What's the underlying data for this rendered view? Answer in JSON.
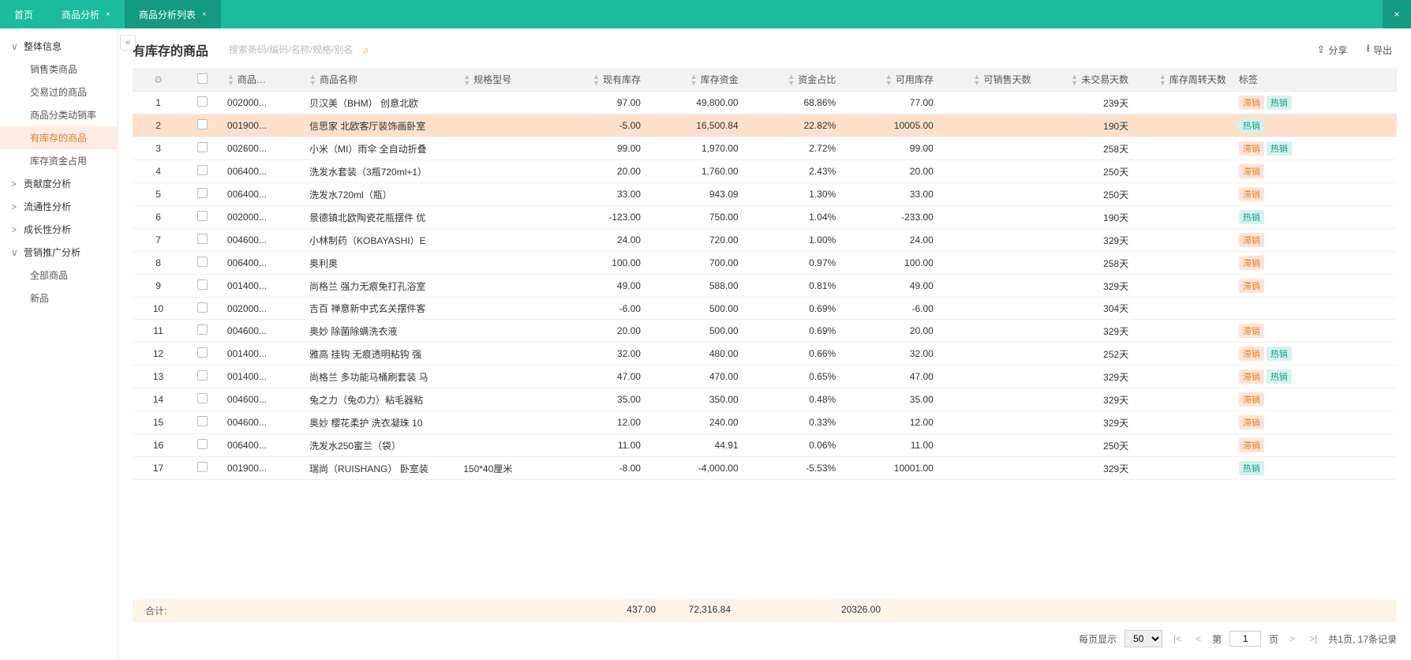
{
  "tabs": {
    "items": [
      {
        "label": "首页",
        "closable": false,
        "active": false
      },
      {
        "label": "商品分析",
        "closable": true,
        "active": false
      },
      {
        "label": "商品分析列表",
        "closable": true,
        "active": true
      }
    ],
    "close_glyph": "×"
  },
  "sidebar": {
    "collapse_glyph": "«",
    "groups": [
      {
        "title": "整体信息",
        "open": true,
        "items": [
          {
            "label": "销售类商品",
            "active": false
          },
          {
            "label": "交易过的商品",
            "active": false
          },
          {
            "label": "商品分类动销率",
            "active": false
          },
          {
            "label": "有库存的商品",
            "active": true
          },
          {
            "label": "库存资金占用",
            "active": false
          }
        ]
      },
      {
        "title": "贡献度分析",
        "open": false,
        "items": []
      },
      {
        "title": "流通性分析",
        "open": false,
        "items": []
      },
      {
        "title": "成长性分析",
        "open": false,
        "items": []
      },
      {
        "title": "营销推广分析",
        "open": true,
        "items": [
          {
            "label": "全部商品",
            "active": false
          },
          {
            "label": "新品",
            "active": false
          }
        ]
      }
    ]
  },
  "toolbar": {
    "title": "有库存的商品",
    "search_placeholder": "搜索条码/编码/名称/规格/别名",
    "share_label": "分享",
    "export_label": "导出"
  },
  "columns": [
    {
      "key": "idx",
      "label": "",
      "type": "gear"
    },
    {
      "key": "chk",
      "label": "",
      "type": "chk"
    },
    {
      "key": "code",
      "label": "商品…",
      "sortable": true
    },
    {
      "key": "name",
      "label": "商品名称",
      "sortable": true
    },
    {
      "key": "spec",
      "label": "规格型号",
      "sortable": true
    },
    {
      "key": "stock",
      "label": "现有库存",
      "sortable": true,
      "num": true
    },
    {
      "key": "fund",
      "label": "库存资金",
      "sortable": true,
      "num": true
    },
    {
      "key": "fund_pct",
      "label": "资金占比",
      "sortable": true,
      "num": true
    },
    {
      "key": "avail",
      "label": "可用库存",
      "sortable": true,
      "num": true
    },
    {
      "key": "sale_days",
      "label": "可销售天数",
      "sortable": true,
      "num": true
    },
    {
      "key": "no_trade",
      "label": "未交易天数",
      "sortable": true,
      "num": true
    },
    {
      "key": "turn_days",
      "label": "库存周转天数",
      "sortable": true,
      "num": true
    },
    {
      "key": "tags",
      "label": "标签"
    }
  ],
  "tag_map": {
    "滞销": "tag-orange",
    "热销": "tag-teal"
  },
  "rows": [
    {
      "idx": "1",
      "code": "002000...",
      "name": "贝汉美（BHM） 创意北欧",
      "spec": "",
      "stock": "97.00",
      "fund": "49,800.00",
      "fund_pct": "68.86%",
      "avail": "77.00",
      "sale_days": "",
      "no_trade": "239天",
      "turn_days": "",
      "tags": [
        "滞销",
        "热销"
      ],
      "highlight": false
    },
    {
      "idx": "2",
      "code": "001900...",
      "name": "信思家 北欧客厅装饰画卧室",
      "spec": "",
      "stock": "-5.00",
      "fund": "16,500.84",
      "fund_pct": "22.82%",
      "avail": "10005.00",
      "sale_days": "",
      "no_trade": "190天",
      "turn_days": "",
      "tags": [
        "热销"
      ],
      "highlight": true
    },
    {
      "idx": "3",
      "code": "002600...",
      "name": "小米（MI）雨伞 全自动折叠",
      "spec": "",
      "stock": "99.00",
      "fund": "1,970.00",
      "fund_pct": "2.72%",
      "avail": "99.00",
      "sale_days": "",
      "no_trade": "258天",
      "turn_days": "",
      "tags": [
        "滞销",
        "热销"
      ],
      "highlight": false
    },
    {
      "idx": "4",
      "code": "006400...",
      "name": "洗发水套装（3瓶720ml+1）",
      "spec": "",
      "stock": "20.00",
      "fund": "1,760.00",
      "fund_pct": "2.43%",
      "avail": "20.00",
      "sale_days": "",
      "no_trade": "250天",
      "turn_days": "",
      "tags": [
        "滞销"
      ],
      "highlight": false
    },
    {
      "idx": "5",
      "code": "006400...",
      "name": "洗发水720ml（瓶）",
      "spec": "",
      "stock": "33.00",
      "fund": "943.09",
      "fund_pct": "1.30%",
      "avail": "33.00",
      "sale_days": "",
      "no_trade": "250天",
      "turn_days": "",
      "tags": [
        "滞销"
      ],
      "highlight": false
    },
    {
      "idx": "6",
      "code": "002000...",
      "name": "景德镇北欧陶瓷花瓶摆件 优",
      "spec": "",
      "stock": "-123.00",
      "fund": "750.00",
      "fund_pct": "1.04%",
      "avail": "-233.00",
      "sale_days": "",
      "no_trade": "190天",
      "turn_days": "",
      "tags": [
        "热销"
      ],
      "highlight": false
    },
    {
      "idx": "7",
      "code": "004600...",
      "name": "小林制药（KOBAYASHI）E",
      "spec": "",
      "stock": "24.00",
      "fund": "720.00",
      "fund_pct": "1.00%",
      "avail": "24.00",
      "sale_days": "",
      "no_trade": "329天",
      "turn_days": "",
      "tags": [
        "滞销"
      ],
      "highlight": false
    },
    {
      "idx": "8",
      "code": "006400...",
      "name": "奥利奥",
      "spec": "",
      "stock": "100.00",
      "fund": "700.00",
      "fund_pct": "0.97%",
      "avail": "100.00",
      "sale_days": "",
      "no_trade": "258天",
      "turn_days": "",
      "tags": [
        "滞销"
      ],
      "highlight": false
    },
    {
      "idx": "9",
      "code": "001400...",
      "name": "尚格兰 强力无痕免打孔浴室",
      "spec": "",
      "stock": "49.00",
      "fund": "588.00",
      "fund_pct": "0.81%",
      "avail": "49.00",
      "sale_days": "",
      "no_trade": "329天",
      "turn_days": "",
      "tags": [
        "滞销"
      ],
      "highlight": false
    },
    {
      "idx": "10",
      "code": "002000...",
      "name": "吉百 禅意新中式玄关摆件客",
      "spec": "",
      "stock": "-6.00",
      "fund": "500.00",
      "fund_pct": "0.69%",
      "avail": "-6.00",
      "sale_days": "",
      "no_trade": "304天",
      "turn_days": "",
      "tags": [],
      "highlight": false
    },
    {
      "idx": "11",
      "code": "004600...",
      "name": "奥妙 除菌除螨洗衣液",
      "spec": "",
      "stock": "20.00",
      "fund": "500.00",
      "fund_pct": "0.69%",
      "avail": "20.00",
      "sale_days": "",
      "no_trade": "329天",
      "turn_days": "",
      "tags": [
        "滞销"
      ],
      "highlight": false
    },
    {
      "idx": "12",
      "code": "001400...",
      "name": "雅高 挂钩 无痕透明粘钩 强",
      "spec": "",
      "stock": "32.00",
      "fund": "480.00",
      "fund_pct": "0.66%",
      "avail": "32.00",
      "sale_days": "",
      "no_trade": "252天",
      "turn_days": "",
      "tags": [
        "滞销",
        "热销"
      ],
      "highlight": false
    },
    {
      "idx": "13",
      "code": "001400...",
      "name": "尚格兰 多功能马桶刷套装 马",
      "spec": "",
      "stock": "47.00",
      "fund": "470.00",
      "fund_pct": "0.65%",
      "avail": "47.00",
      "sale_days": "",
      "no_trade": "329天",
      "turn_days": "",
      "tags": [
        "滞销",
        "热销"
      ],
      "highlight": false
    },
    {
      "idx": "14",
      "code": "004600...",
      "name": "兔之力（兔の力）粘毛器粘",
      "spec": "",
      "stock": "35.00",
      "fund": "350.00",
      "fund_pct": "0.48%",
      "avail": "35.00",
      "sale_days": "",
      "no_trade": "329天",
      "turn_days": "",
      "tags": [
        "滞销"
      ],
      "highlight": false
    },
    {
      "idx": "15",
      "code": "004600...",
      "name": "奥妙 樱花柔护 洗衣凝珠 10",
      "spec": "",
      "stock": "12.00",
      "fund": "240.00",
      "fund_pct": "0.33%",
      "avail": "12.00",
      "sale_days": "",
      "no_trade": "329天",
      "turn_days": "",
      "tags": [
        "滞销"
      ],
      "highlight": false
    },
    {
      "idx": "16",
      "code": "006400...",
      "name": "洗发水250蜜兰（袋）",
      "spec": "",
      "stock": "11.00",
      "fund": "44.91",
      "fund_pct": "0.06%",
      "avail": "11.00",
      "sale_days": "",
      "no_trade": "250天",
      "turn_days": "",
      "tags": [
        "滞销"
      ],
      "highlight": false
    },
    {
      "idx": "17",
      "code": "001900...",
      "name": "瑞尚（RUISHANG） 卧室装",
      "spec": "150*40厘米",
      "stock": "-8.00",
      "fund": "-4,000.00",
      "fund_pct": "-5.53%",
      "avail": "10001.00",
      "sale_days": "",
      "no_trade": "329天",
      "turn_days": "",
      "tags": [
        "热销"
      ],
      "highlight": false
    }
  ],
  "summary": {
    "label": "合计:",
    "stock": "437.00",
    "fund": "72,316.84",
    "avail": "20326.00"
  },
  "pager": {
    "per_page_label": "每页显示",
    "per_page_value": "50",
    "page_prefix": "第",
    "page_value": "1",
    "page_suffix": "页",
    "total_text": "共1页, 17条记录",
    "first": "|<",
    "prev": "<",
    "next": ">",
    "last": ">|"
  }
}
